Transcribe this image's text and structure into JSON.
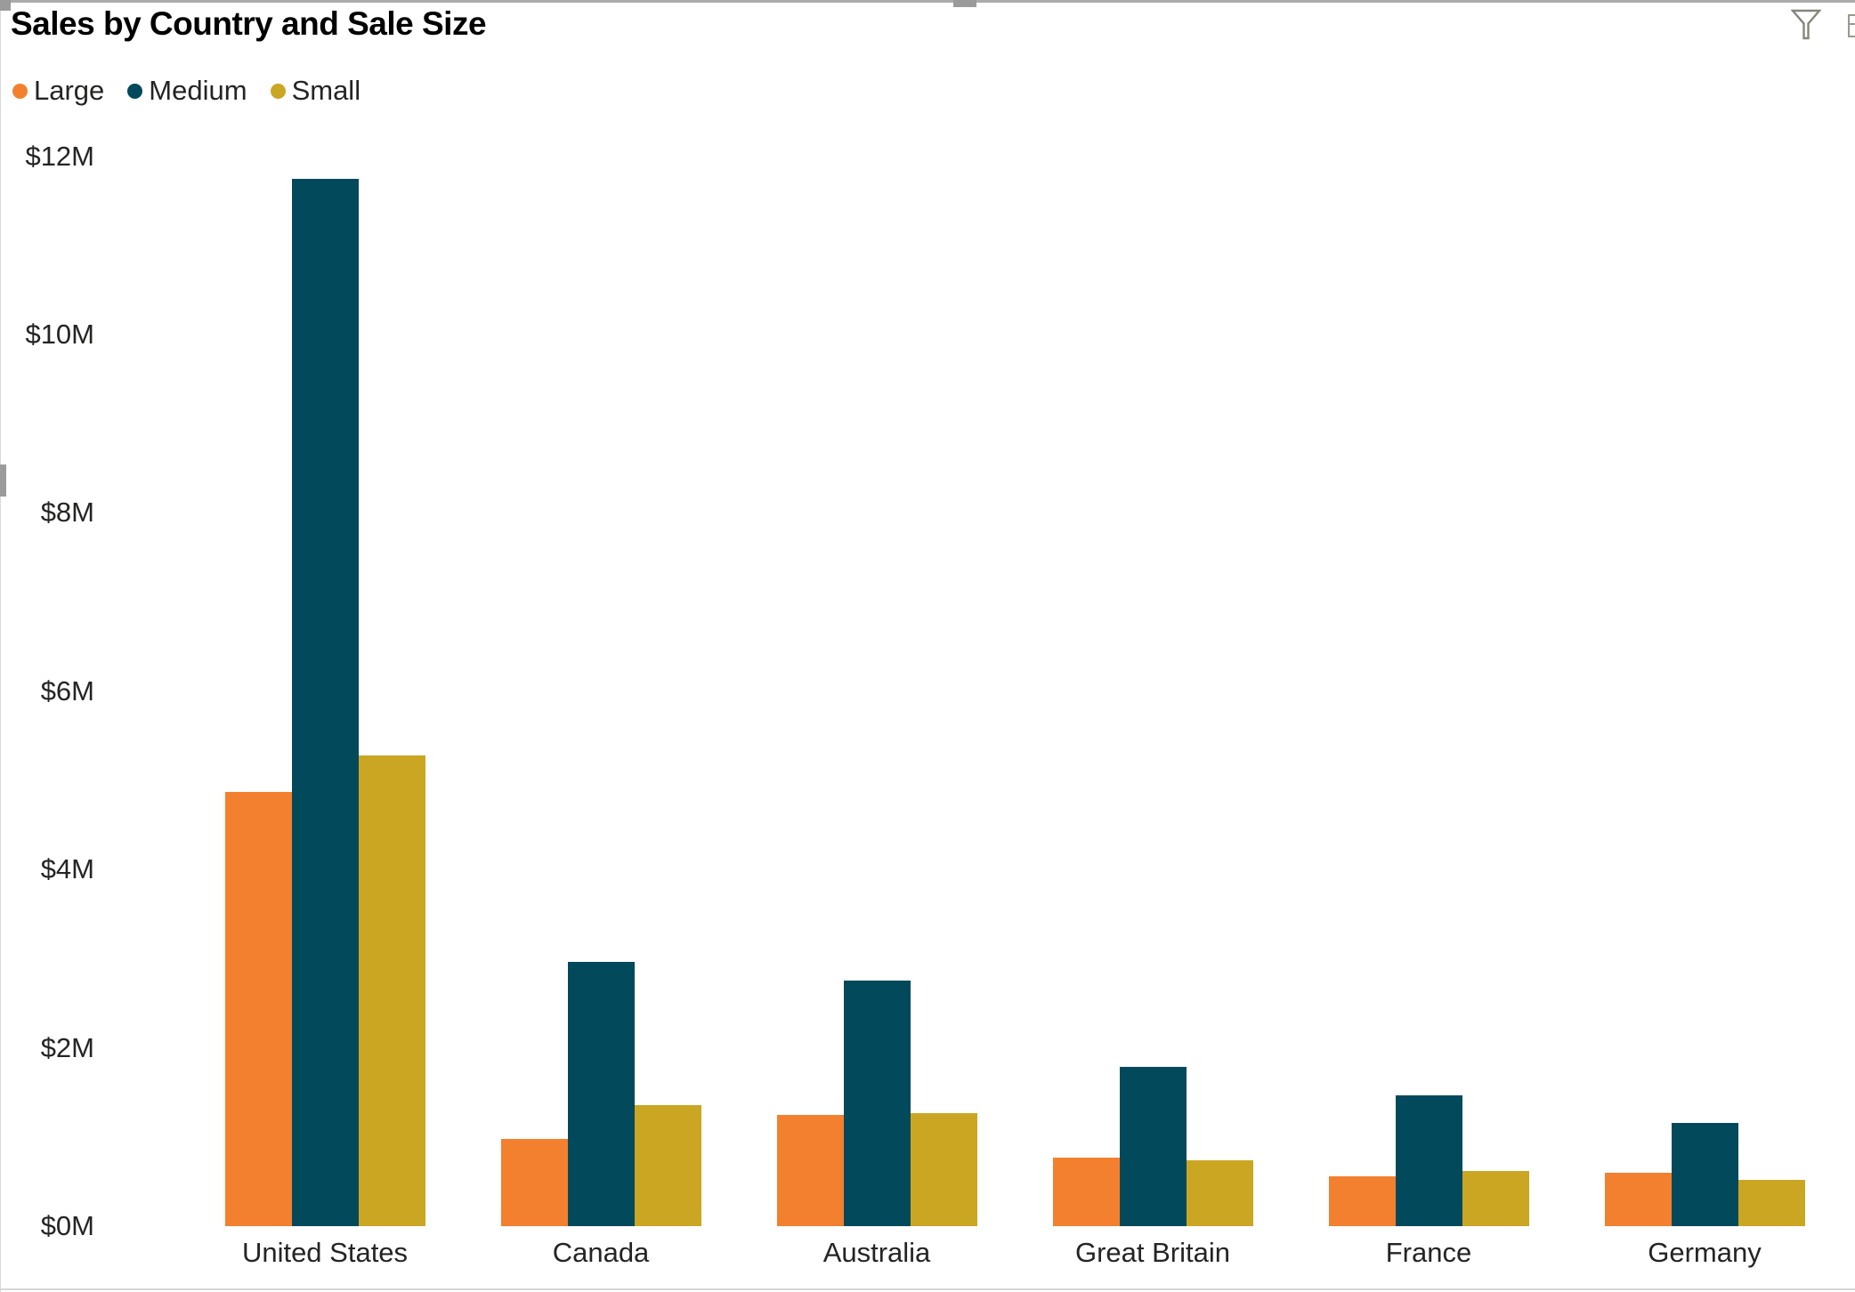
{
  "visual": {
    "title": "Sales by Country and Sale Size",
    "header_icons": [
      {
        "name": "filter-icon"
      },
      {
        "name": "options-icon"
      }
    ]
  },
  "legend": {
    "position": "top-left",
    "items": [
      {
        "label": "Large",
        "color": "#F2802E"
      },
      {
        "label": "Medium",
        "color": "#01495B"
      },
      {
        "label": "Small",
        "color": "#CAA623"
      }
    ]
  },
  "chart_data": {
    "type": "bar",
    "title": "Sales by Country and Sale Size",
    "categories": [
      "United States",
      "Canada",
      "Australia",
      "Great Britain",
      "France",
      "Germany"
    ],
    "series": [
      {
        "name": "Large",
        "color": "#F2802E",
        "values": [
          4.87,
          0.98,
          1.25,
          0.77,
          0.56,
          0.6
        ]
      },
      {
        "name": "Medium",
        "color": "#01495B",
        "values": [
          11.75,
          2.96,
          2.75,
          1.79,
          1.47,
          1.16
        ]
      },
      {
        "name": "Small",
        "color": "#CAA623",
        "values": [
          5.28,
          1.36,
          1.27,
          0.74,
          0.62,
          0.52
        ]
      }
    ],
    "xlabel": "",
    "ylabel": "",
    "ylim": [
      0,
      12
    ],
    "y_tick_values": [
      0,
      2,
      4,
      6,
      8,
      10,
      12
    ],
    "y_tick_labels": [
      "$0M",
      "$2M",
      "$4M",
      "$6M",
      "$8M",
      "$10M",
      "$12M"
    ],
    "value_unit": "M USD",
    "grid": false,
    "legend_position": "top-left"
  }
}
